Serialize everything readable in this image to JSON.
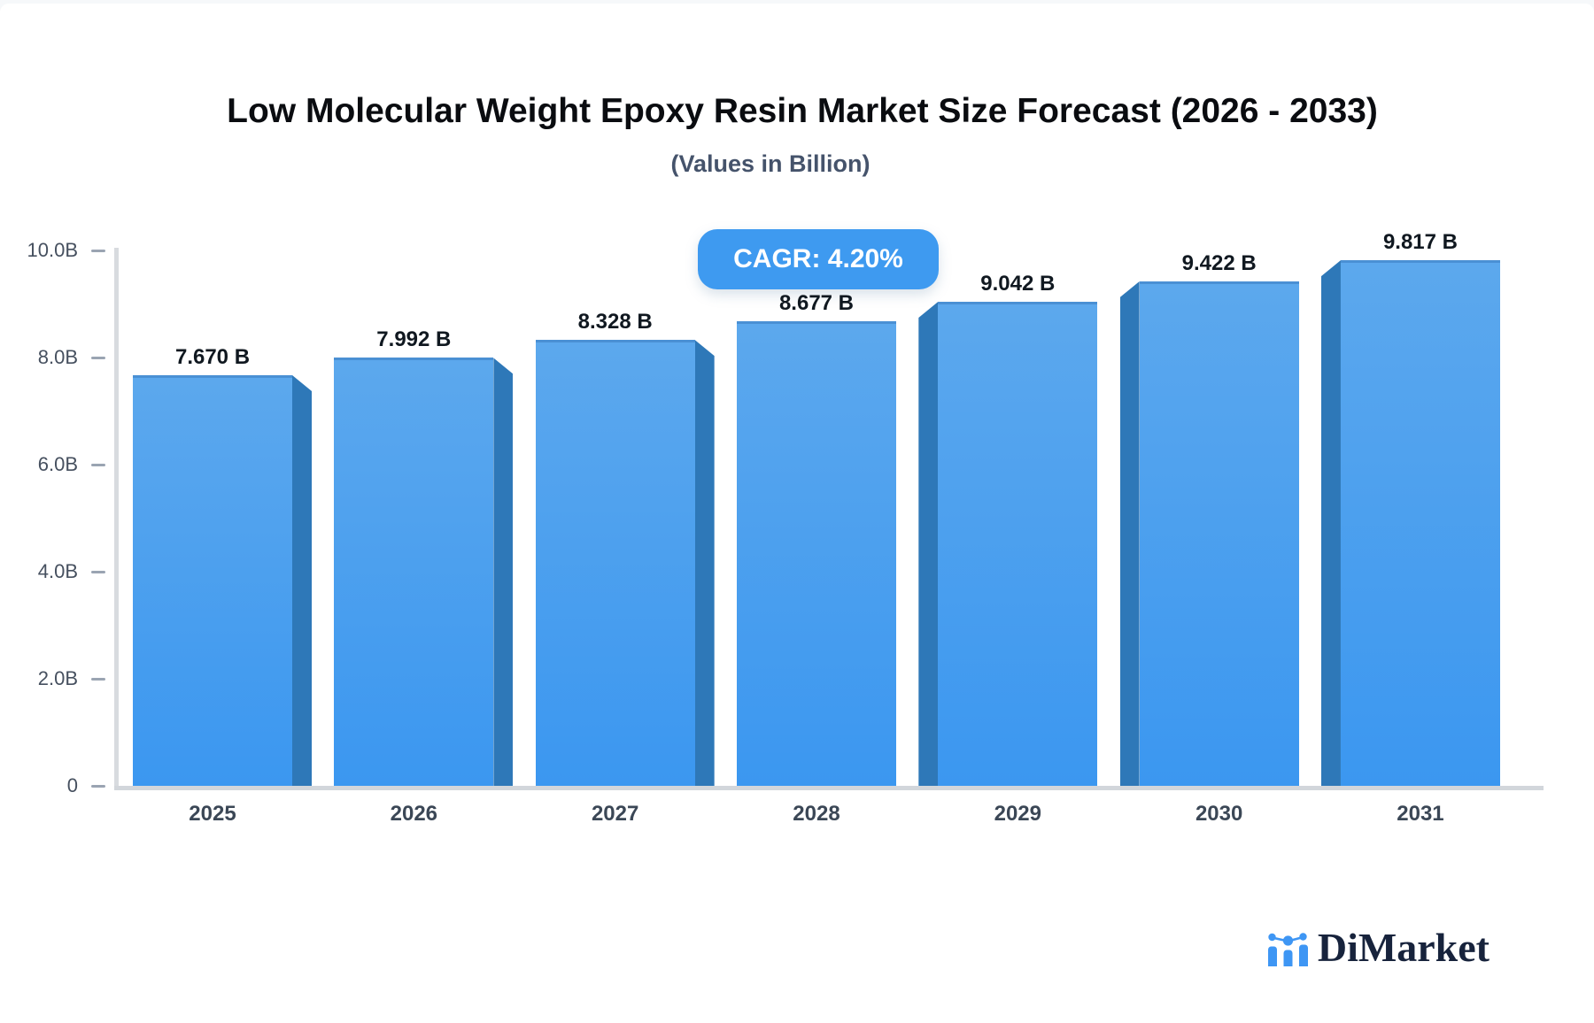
{
  "header": {
    "title": "Low Molecular Weight Epoxy Resin Market Size Forecast (2026 - 2033)",
    "subtitle": "(Values in Billion)"
  },
  "badge": {
    "label": "CAGR: 4.20%"
  },
  "chart_data": {
    "type": "bar",
    "title": "Low Molecular Weight Epoxy Resin Market Size Forecast (2026 - 2033)",
    "subtitle": "(Values in Billion)",
    "categories": [
      "2025",
      "2026",
      "2027",
      "2028",
      "2029",
      "2030",
      "2031"
    ],
    "values": [
      7.67,
      7.992,
      8.328,
      8.677,
      9.042,
      9.422,
      9.817
    ],
    "value_labels": [
      "7.670 B",
      "7.992 B",
      "8.328 B",
      "8.677 B",
      "9.042 B",
      "9.422 B",
      "9.817 B"
    ],
    "unit": "Billion",
    "xlabel": "",
    "ylabel": "",
    "ylim": [
      0,
      10
    ],
    "yticks": {
      "values": [
        0,
        2,
        4,
        6,
        8,
        10
      ],
      "labels": [
        "0",
        "2.0B",
        "4.0B",
        "6.0B",
        "8.0B",
        "10.0B"
      ]
    },
    "grid": false,
    "legend": "none",
    "annotation": "CAGR: 4.20%",
    "colors": {
      "bar_gradient_top": "#5ca8ed",
      "bar_gradient_bottom": "#3b97f0",
      "bar_side": "#2e78b8",
      "bar_top_edge": "#4a90d4",
      "axis_line": "#d5d8dc",
      "tick": "#9aa4b2",
      "badge_bg": "#3e9af0",
      "badge_text": "#ffffff"
    }
  },
  "logo": {
    "text": "DiMarket",
    "icon": "dimarket-bar-chart-icon"
  }
}
